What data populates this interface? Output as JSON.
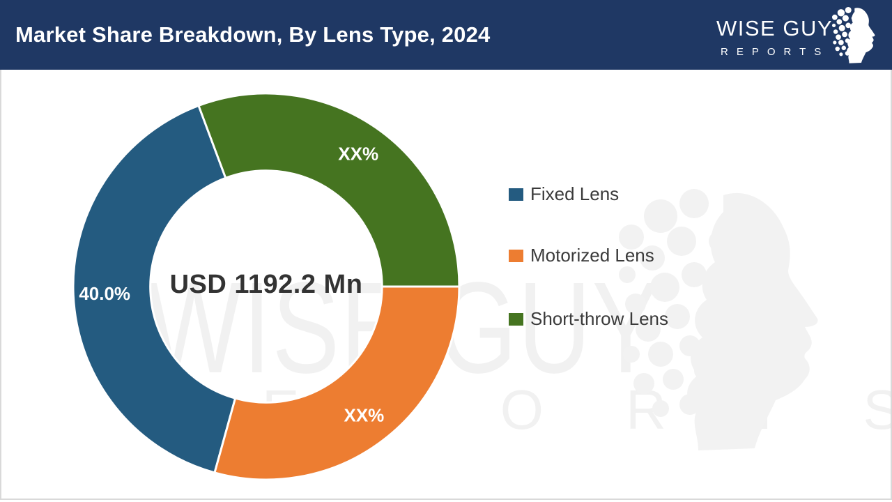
{
  "header": {
    "title": "Market Share Breakdown, By Lens Type, 2024",
    "logo": {
      "wordmark": "WISE GUY",
      "subtext": "REPORTS"
    }
  },
  "watermark": {
    "line1": "WISE GUY",
    "line2": "R E P O R T S"
  },
  "chart_data": {
    "type": "donut",
    "title": "Market Share Breakdown, By Lens Type, 2024",
    "center_label": "USD 1192.2 Mn",
    "legend_position": "right",
    "donut_hole_ratio": 0.6,
    "segments": [
      {
        "name": "Fixed Lens",
        "value_label": "40.0%",
        "pct": 40.0,
        "color": "#245b80",
        "start_angle": 110.5,
        "end_angle": 254.5
      },
      {
        "name": "Motorized Lens",
        "value_label": "XX%",
        "pct": 29.3,
        "color": "#ed7d31",
        "start_angle": 254.5,
        "end_angle": 360
      },
      {
        "name": "Short-throw Lens",
        "value_label": "XX%",
        "pct": 30.7,
        "color": "#457420",
        "start_angle": 0,
        "end_angle": 110.5
      }
    ],
    "colors": {
      "header_bg": "#1f3864",
      "border": "#d9d9d9",
      "watermark": "#f1f1f1",
      "center_text": "#333333",
      "legend_text": "#3a3a3a",
      "slice_label_text": "#ffffff"
    }
  }
}
